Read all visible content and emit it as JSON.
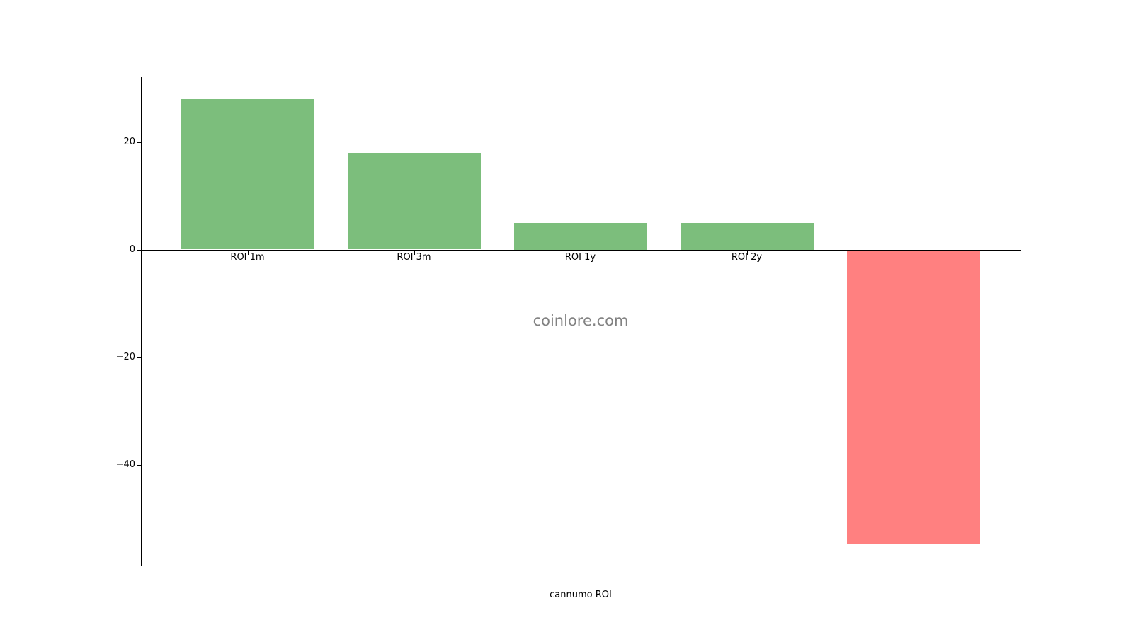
{
  "page": {
    "background": "#ffffff"
  },
  "watermark": {
    "text": "coinlore.com",
    "color": "#828282"
  },
  "chart_data": {
    "type": "bar",
    "title": "",
    "xlabel": "cannumo ROI",
    "ylabel": "",
    "categories": [
      "ROI 1m",
      "ROI 3m",
      "ROI 1y",
      "ROI 2y",
      ""
    ],
    "values": [
      28,
      18,
      5,
      5,
      -54.6
    ],
    "series": [
      {
        "name": "cannumo ROI",
        "values": [
          28,
          18,
          5,
          5,
          -54.6
        ]
      }
    ],
    "positive_color": "#7CBE7C",
    "negative_color": "#FF8080",
    "yticks": [
      20,
      0,
      -20,
      -40
    ],
    "ylim": [
      -58.7,
      32.1
    ],
    "xlim_units": [
      -0.64,
      4.65
    ],
    "grid": false,
    "legend": null,
    "annotations": [
      "coinlore.com"
    ]
  }
}
